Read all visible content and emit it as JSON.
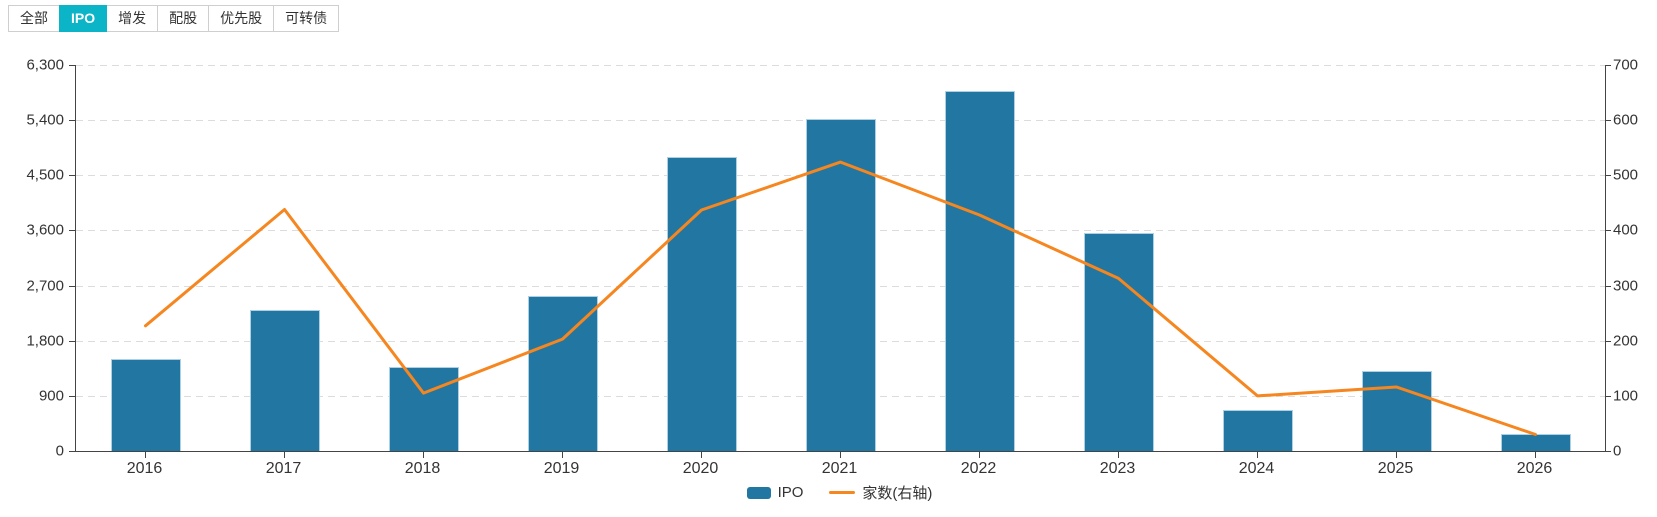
{
  "tabs": {
    "items": [
      {
        "label": "全部",
        "active": false
      },
      {
        "label": "IPO",
        "active": true
      },
      {
        "label": "增发",
        "active": false
      },
      {
        "label": "配股",
        "active": false
      },
      {
        "label": "优先股",
        "active": false
      },
      {
        "label": "可转债",
        "active": false
      }
    ]
  },
  "chart_data": {
    "type": "bar+line",
    "categories": [
      "2016",
      "2017",
      "2018",
      "2019",
      "2020",
      "2021",
      "2022",
      "2023",
      "2024",
      "2025",
      "2026"
    ],
    "series": [
      {
        "name": "IPO",
        "type": "bar",
        "axis": "left",
        "color": "#2277a2",
        "values": [
          1496,
          2301,
          1378,
          2532,
          4793,
          5426,
          5869,
          3565,
          673,
          1310,
          280
        ]
      },
      {
        "name": "家数(右轴)",
        "type": "line",
        "axis": "right",
        "color": "#f6861f",
        "values": [
          227,
          438,
          105,
          203,
          437,
          524,
          428,
          313,
          100,
          116,
          30
        ]
      }
    ],
    "left_axis": {
      "min": 0,
      "max": 6300,
      "step": 900,
      "tick_labels_top_to_bottom": [
        "6,300",
        "5,400",
        "4,500",
        "3,600",
        "2,700",
        "1,800",
        "900",
        "0"
      ]
    },
    "right_axis": {
      "min": 0,
      "max": 700,
      "step": 100,
      "tick_labels_top_to_bottom": [
        "700",
        "600",
        "500",
        "400",
        "300",
        "200",
        "100",
        "0"
      ]
    },
    "grid": {
      "horizontal": "dashed",
      "vertical": "none"
    },
    "legend": {
      "position": "bottom",
      "items": [
        "IPO",
        "家数(右轴)"
      ]
    }
  },
  "colors": {
    "bar": "#2277a2",
    "line": "#f6861f",
    "grid": "#dcdcdc",
    "axis": "#444444",
    "text": "#333333",
    "tab_active_bg": "#0cb4c8",
    "tab_border": "#cfcfcf"
  }
}
